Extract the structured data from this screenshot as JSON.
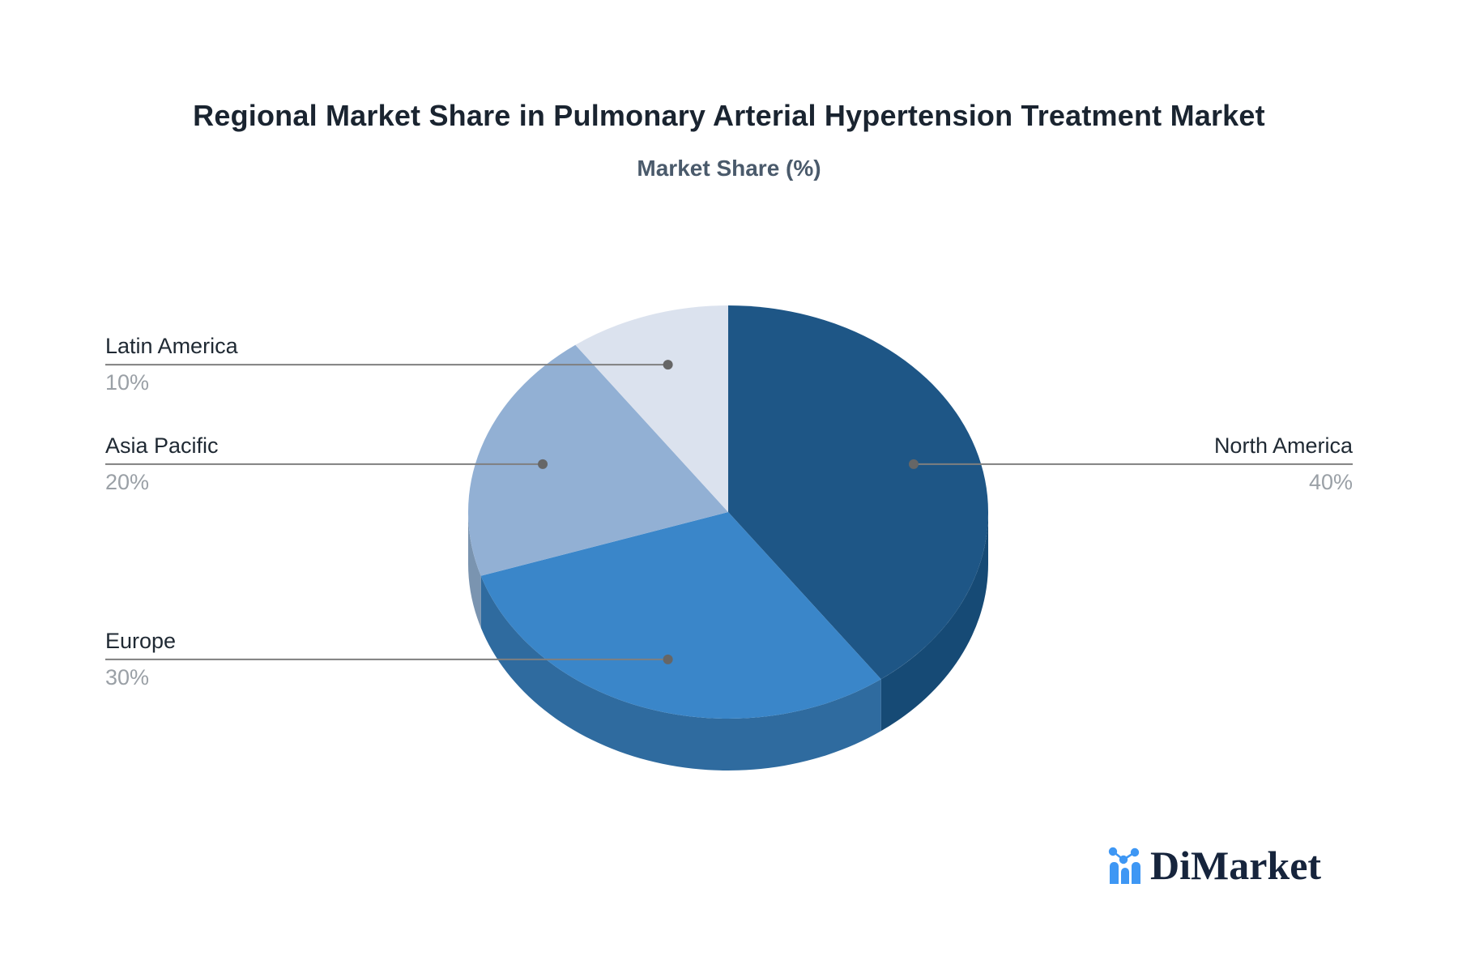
{
  "title": "Regional Market Share in Pulmonary Arterial Hypertension Treatment Market",
  "subtitle": "Market Share (%)",
  "chart_data": {
    "type": "pie",
    "effect": "3d",
    "title": "Regional Market Share in Pulmonary Arterial Hypertension Treatment Market",
    "subtitle": "Market Share (%)",
    "unit": "%",
    "start_angle_deg": 0,
    "direction": "clockwise",
    "legend_position": "leader-lines",
    "slices": [
      {
        "label": "North America",
        "value": 40,
        "percent_label": "40%",
        "color": "#1E5686",
        "side_color": "#164A75",
        "label_side": "right"
      },
      {
        "label": "Europe",
        "value": 30,
        "percent_label": "30%",
        "color": "#3A86C9",
        "side_color": "#2F6B9F",
        "label_side": "left"
      },
      {
        "label": "Asia Pacific",
        "value": 20,
        "percent_label": "20%",
        "color": "#92B0D4",
        "side_color": "#7A94B0",
        "label_side": "left"
      },
      {
        "label": "Latin America",
        "value": 10,
        "percent_label": "10%",
        "color": "#DBE2EE",
        "side_color": "#C4CEDE",
        "label_side": "left"
      }
    ]
  },
  "styles": {
    "background": "#FFFFFF",
    "title_color": "#1A2430",
    "subtitle_color": "#4A5A6B",
    "label_name_color": "#1F2933",
    "label_percent_color": "#9AA0A6",
    "leader_line_color": "#7F7F7F",
    "leader_dot_color": "#666666"
  },
  "branding": {
    "logo_text": "DiMarket",
    "logo_icon": "bar-line-chart-icon",
    "logo_text_color": "#16243C",
    "logo_icon_color": "#3E97F4"
  }
}
